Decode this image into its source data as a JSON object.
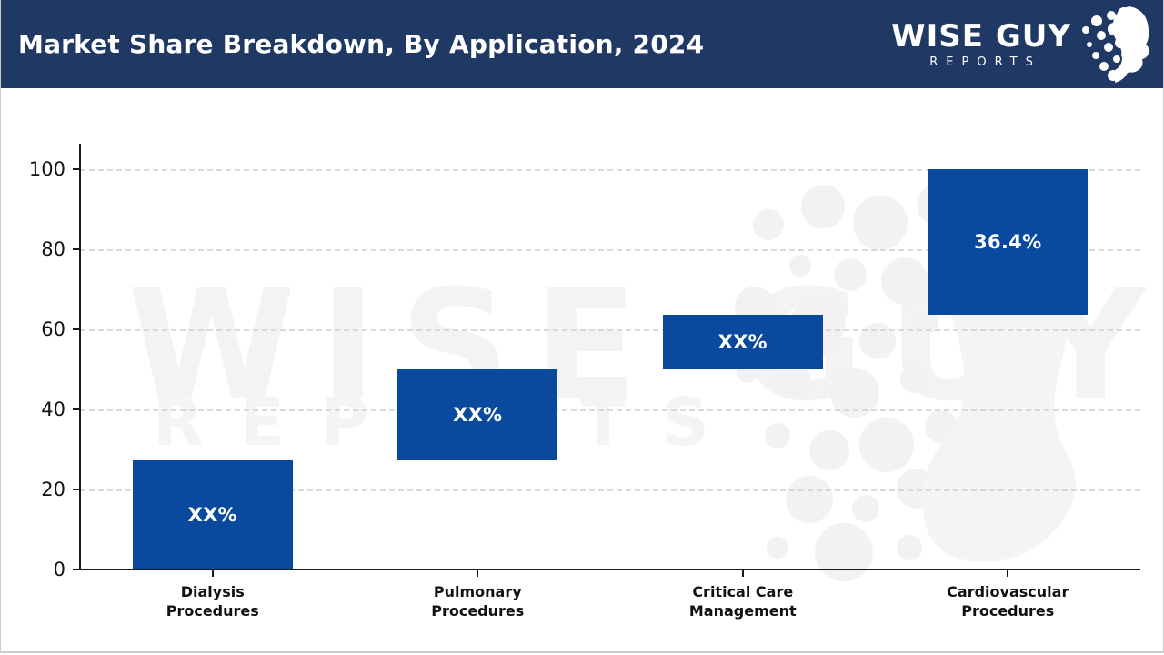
{
  "header": {
    "title": "Market Share Breakdown, By Application, 2024",
    "brand_line1": "WISE GUY",
    "brand_line2": "REPORTS"
  },
  "watermark": {
    "line1": "WISE GUY",
    "line2": "REPORTS"
  },
  "chart_data": {
    "type": "bar",
    "subtype": "waterfall",
    "title": "Market Share Breakdown, By Application, 2024",
    "categories": [
      "Dialysis Procedures",
      "Pulmonary Procedures",
      "Critical Care Management",
      "Cardiovascular Procedures"
    ],
    "category_lines": [
      [
        "Dialysis",
        "Procedures"
      ],
      [
        "Pulmonary",
        "Procedures"
      ],
      [
        "Critical Care",
        "Management"
      ],
      [
        "Cardiovascular",
        "Procedures"
      ]
    ],
    "segments": [
      {
        "category": "Dialysis Procedures",
        "start": 0,
        "end": 27.3,
        "label": "XX%"
      },
      {
        "category": "Pulmonary Procedures",
        "start": 27.3,
        "end": 50,
        "label": "XX%"
      },
      {
        "category": "Critical Care Management",
        "start": 50,
        "end": 63.6,
        "label": "XX%"
      },
      {
        "category": "Cardiovascular Procedures",
        "start": 63.6,
        "end": 100,
        "label": "36.4%"
      }
    ],
    "ylim": [
      0,
      100
    ],
    "yticks": [
      0,
      20,
      40,
      60,
      80,
      100
    ],
    "xlabel": "",
    "ylabel": "",
    "legend": "none",
    "grid": "horizontal-dashed",
    "colors": {
      "bar": "#0a4a9e",
      "bar_label": "#ffffff",
      "axis": "#1a1a1a",
      "grid": "#d9d9d9",
      "header_bg": "#1f3864",
      "watermark": "#f3f3f5"
    }
  }
}
